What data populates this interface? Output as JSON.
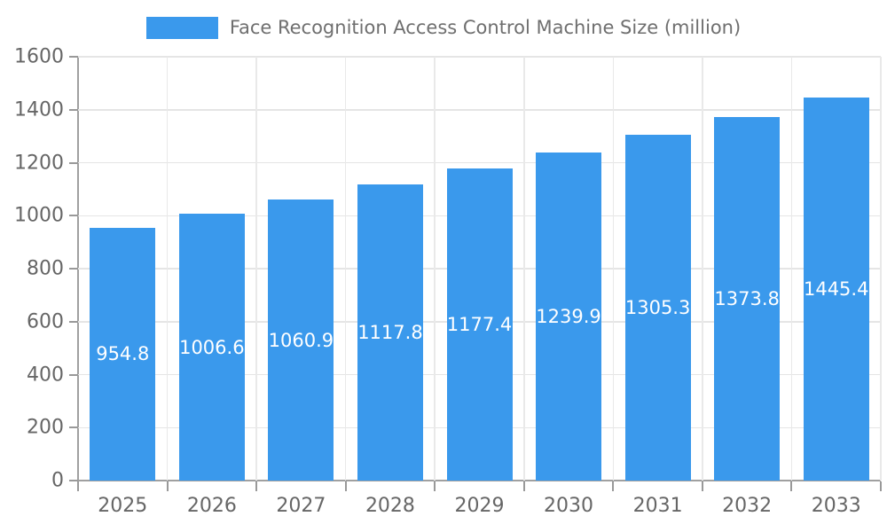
{
  "chart_data": {
    "type": "bar",
    "title": "Face Recognition Access Control Machine Size (million)",
    "legend_entries": [
      "Face Recognition Access Control Machine Size (million)"
    ],
    "legend_position": "top-center",
    "categories": [
      "2025",
      "2026",
      "2027",
      "2028",
      "2029",
      "2030",
      "2031",
      "2032",
      "2033"
    ],
    "series": [
      {
        "name": "Face Recognition Access Control Machine Size (million)",
        "values": [
          954.8,
          1006.6,
          1060.9,
          1117.8,
          1177.4,
          1239.9,
          1305.3,
          1373.8,
          1445.4
        ],
        "value_labels": [
          "954.8",
          "1006.6",
          "1060.9",
          "1117.8",
          "1177.4",
          "1239.9",
          "1305.3",
          "1373.8",
          "1445.4"
        ]
      }
    ],
    "xlabel": "",
    "ylabel": "",
    "ylim": [
      0,
      1600
    ],
    "ytick_step": 200,
    "ytick_labels": [
      "0",
      "200",
      "400",
      "600",
      "800",
      "1000",
      "1200",
      "1400",
      "1600"
    ],
    "grid": true,
    "data_labels": "inside-center-white",
    "colors": {
      "bar": "#3A99EC",
      "grid_h": "#E5E5E5",
      "grid_v": "#E9E9E9",
      "axis": "#A0A0A0",
      "tick": "#999999",
      "tick_label": "#666666",
      "title": "#6F6F6F",
      "bar_label": "#FFFFFF",
      "background": "#FFFFFF"
    }
  }
}
